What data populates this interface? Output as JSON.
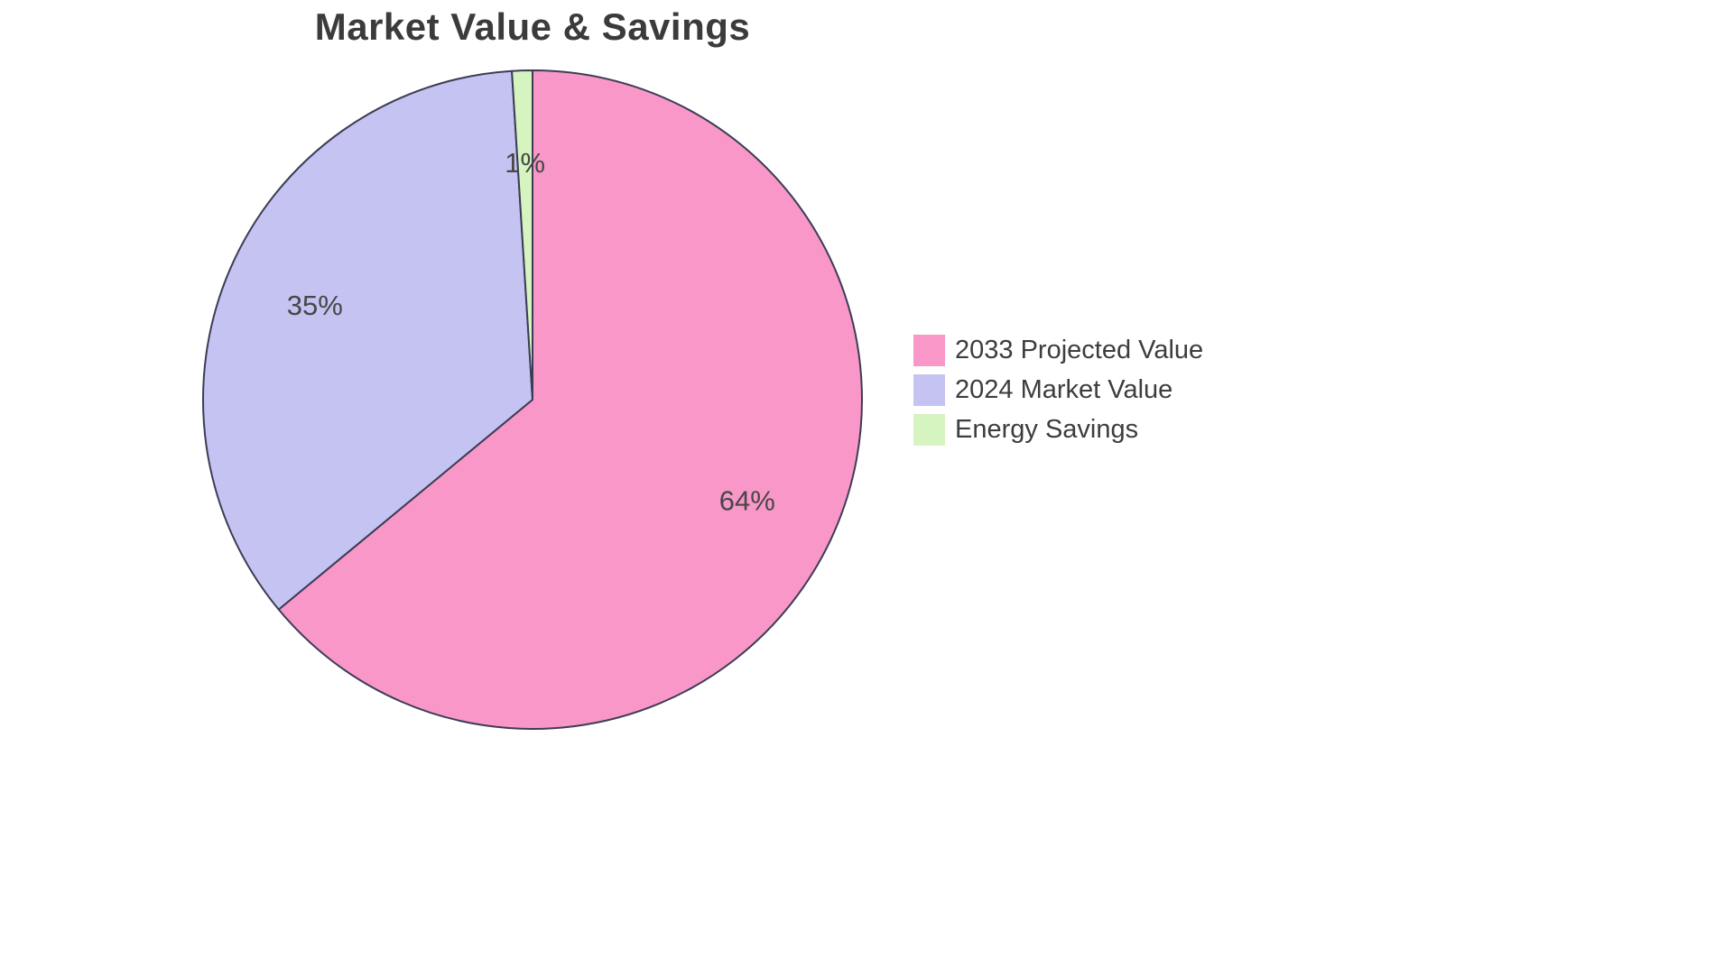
{
  "title": "Market Value & Savings",
  "chart_data": {
    "type": "pie",
    "title": "Market Value & Savings",
    "labels": [
      "2033 Projected Value",
      "2024 Market Value",
      "Energy Savings"
    ],
    "values": [
      64,
      35,
      1
    ],
    "percent_labels": [
      "64%",
      "35%",
      "1%"
    ],
    "colors": [
      "#f897c8",
      "#c5c3f2",
      "#d6f4c0"
    ],
    "stroke_color": "#3c3c55",
    "label_color": "#474747",
    "legend_position": "right",
    "start_angle_deg": 0,
    "clockwise": true,
    "grid": false
  }
}
